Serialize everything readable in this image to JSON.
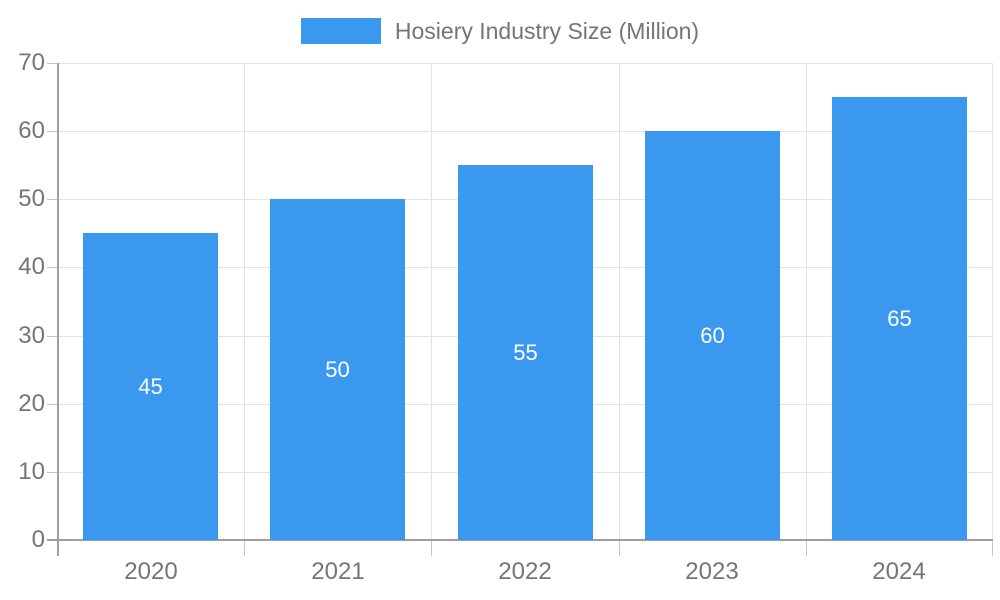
{
  "legend": {
    "series_label": "Hosiery Industry Size (Million)"
  },
  "colors": {
    "bar": "#3a99ee",
    "axis_line": "#9e9e9e",
    "gridline": "#e4e4e4",
    "tick": "#c6c6c6",
    "axis_text": "#757575",
    "bar_label_text": "#ffffff",
    "background": "#ffffff"
  },
  "chart_data": {
    "type": "bar",
    "title": "Hosiery Industry Size (Million)",
    "categories": [
      "2020",
      "2021",
      "2022",
      "2023",
      "2024"
    ],
    "values": [
      45,
      50,
      55,
      60,
      65
    ],
    "bar_labels": [
      "45",
      "50",
      "55",
      "60",
      "65"
    ],
    "xlabel": "",
    "ylabel": "",
    "ylim": [
      0,
      70
    ],
    "yticks": [
      0,
      10,
      20,
      30,
      40,
      50,
      60,
      70
    ],
    "grid": true,
    "legend_position": "top",
    "legend_entries": [
      "Hosiery Industry Size (Million)"
    ]
  }
}
